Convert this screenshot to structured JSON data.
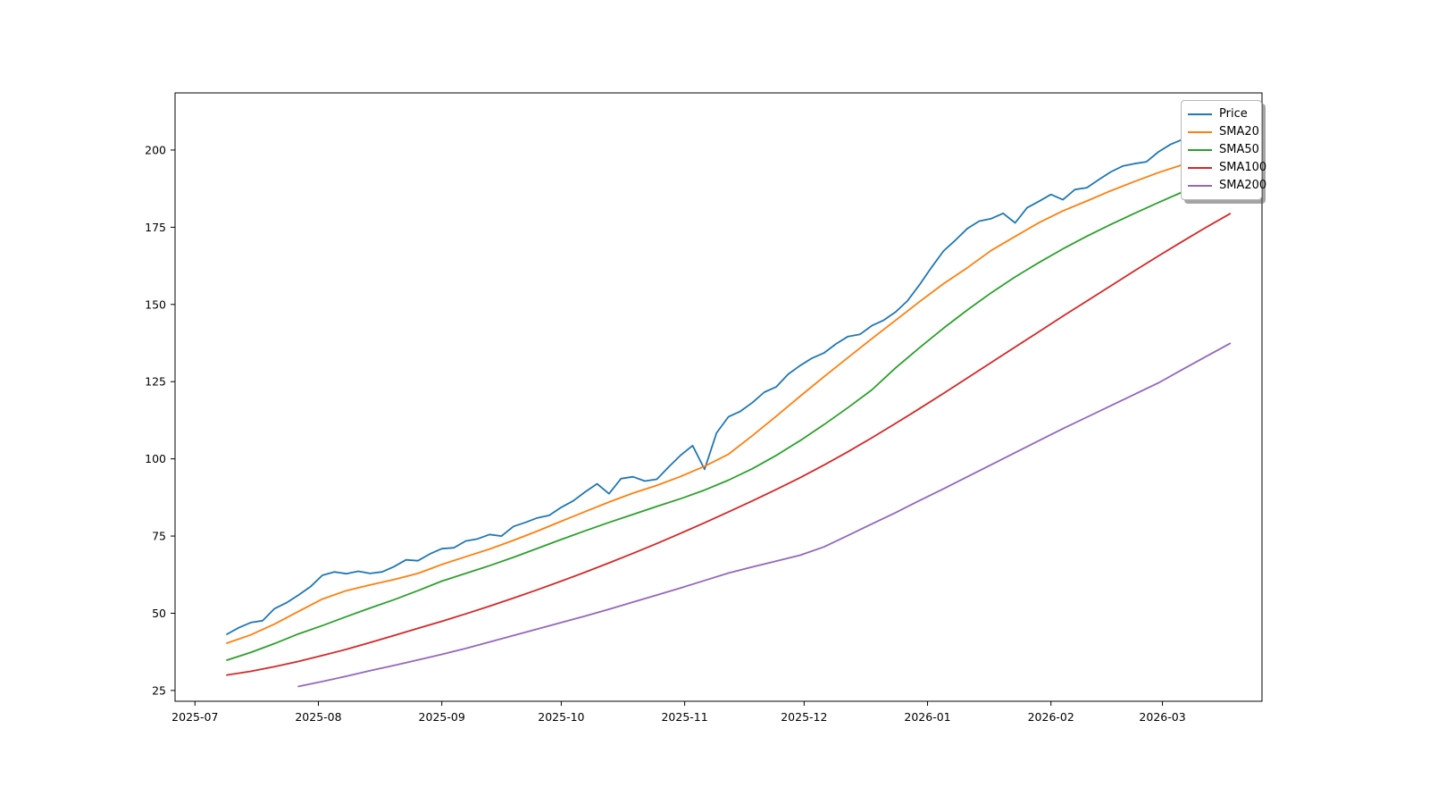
{
  "figure": {
    "background": "#ffffff",
    "plot_background": "#ffffff",
    "spine_color": "#000000"
  },
  "chart_data": {
    "type": "line",
    "title": "",
    "xlabel": "",
    "ylabel": "",
    "grid": false,
    "legend": {
      "position": "upper right",
      "frame": true,
      "shadow": true
    },
    "x_axis": {
      "epoch": "2025-07-01",
      "unit": "days since epoch",
      "domain_days": [
        -5,
        268
      ],
      "tick_days": [
        0,
        31,
        62,
        92,
        123,
        153,
        184,
        215,
        243
      ],
      "tick_labels": [
        "2025-07",
        "2025-08",
        "2025-09",
        "2025-10",
        "2025-11",
        "2025-12",
        "2026-01",
        "2026-02",
        "2026-03"
      ]
    },
    "y_axis": {
      "domain": [
        21.5,
        218.5
      ],
      "tick_values": [
        25,
        50,
        75,
        100,
        125,
        150,
        175,
        200
      ],
      "tick_labels": [
        "25",
        "50",
        "75",
        "100",
        "125",
        "150",
        "175",
        "200"
      ]
    },
    "series": [
      {
        "name": "Price",
        "color": "#1f77b4",
        "days": [
          8,
          11,
          14,
          17,
          20,
          23,
          26,
          29,
          32,
          35,
          38,
          41,
          44,
          47,
          50,
          53,
          56,
          59,
          62,
          65,
          68,
          71,
          74,
          77,
          80,
          83,
          86,
          89,
          92,
          95,
          98,
          101,
          104,
          107,
          110,
          113,
          116,
          119,
          122,
          125,
          128,
          131,
          134,
          137,
          140,
          143,
          146,
          149,
          152,
          155,
          158,
          161,
          164,
          167,
          170,
          173,
          176,
          179,
          182,
          185,
          188,
          191,
          194,
          197,
          200,
          203,
          206,
          209,
          212,
          215,
          218,
          221,
          224,
          227,
          230,
          233,
          236,
          239,
          242,
          245,
          248,
          251,
          254,
          257,
          260
        ],
        "values": [
          43.2,
          45.3,
          47.0,
          47.6,
          51.5,
          53.4,
          55.9,
          58.6,
          62.3,
          63.4,
          62.8,
          63.6,
          62.9,
          63.4,
          65.1,
          67.3,
          67.0,
          69.2,
          70.9,
          71.2,
          73.4,
          74.1,
          75.5,
          75.0,
          78.1,
          79.4,
          80.9,
          81.7,
          84.3,
          86.4,
          89.3,
          91.9,
          88.7,
          93.6,
          94.2,
          92.8,
          93.4,
          97.4,
          101.2,
          104.3,
          96.6,
          108.4,
          113.6,
          115.4,
          118.2,
          121.6,
          123.3,
          127.4,
          130.2,
          132.6,
          134.3,
          137.2,
          139.6,
          140.3,
          143.1,
          144.9,
          147.6,
          151.2,
          156.4,
          162.0,
          167.3,
          170.8,
          174.6,
          177.0,
          177.8,
          179.5,
          176.4,
          181.3,
          183.4,
          185.6,
          183.9,
          187.2,
          187.8,
          190.4,
          192.9,
          194.8,
          195.6,
          196.2,
          199.4,
          201.8,
          203.4,
          201.2,
          202.7,
          201.6,
          203.5
        ]
      },
      {
        "name": "SMA20",
        "color": "#ff7f0e",
        "days": [
          8,
          14,
          20,
          26,
          32,
          38,
          44,
          50,
          56,
          62,
          68,
          74,
          80,
          86,
          92,
          98,
          104,
          110,
          116,
          122,
          128,
          134,
          140,
          146,
          152,
          158,
          164,
          170,
          176,
          182,
          188,
          194,
          200,
          206,
          212,
          218,
          224,
          230,
          236,
          242,
          248,
          254,
          260
        ],
        "values": [
          40.3,
          43.0,
          46.5,
          50.6,
          54.6,
          57.3,
          59.2,
          60.9,
          62.9,
          65.8,
          68.3,
          70.8,
          73.6,
          76.6,
          79.8,
          82.9,
          86.0,
          88.9,
          91.4,
          94.3,
          97.6,
          101.5,
          107.5,
          113.8,
          120.3,
          126.6,
          132.8,
          138.9,
          144.9,
          150.9,
          156.7,
          161.9,
          167.5,
          172.0,
          176.5,
          180.3,
          183.5,
          186.8,
          189.8,
          192.7,
          195.2,
          197.0,
          198.6
        ]
      },
      {
        "name": "SMA50",
        "color": "#2ca02c",
        "days": [
          8,
          14,
          20,
          26,
          32,
          38,
          44,
          50,
          56,
          62,
          68,
          74,
          80,
          86,
          92,
          98,
          104,
          110,
          116,
          122,
          128,
          134,
          140,
          146,
          152,
          158,
          164,
          170,
          176,
          182,
          188,
          194,
          200,
          206,
          212,
          218,
          224,
          230,
          236,
          242,
          248,
          254,
          260
        ],
        "values": [
          34.8,
          37.3,
          40.2,
          43.3,
          46.0,
          48.9,
          51.7,
          54.4,
          57.3,
          60.4,
          62.9,
          65.4,
          68.1,
          71.0,
          73.9,
          76.7,
          79.4,
          82.0,
          84.6,
          87.1,
          89.9,
          93.1,
          96.8,
          101.1,
          105.9,
          111.1,
          116.6,
          122.3,
          129.5,
          136.0,
          142.3,
          148.2,
          153.8,
          158.9,
          163.6,
          168.0,
          172.1,
          175.9,
          179.5,
          183.0,
          186.4,
          189.6,
          192.6
        ]
      },
      {
        "name": "SMA100",
        "color": "#d62728",
        "days": [
          8,
          14,
          20,
          26,
          32,
          38,
          44,
          50,
          56,
          62,
          68,
          74,
          80,
          86,
          92,
          98,
          104,
          110,
          116,
          122,
          128,
          134,
          140,
          146,
          152,
          158,
          164,
          170,
          176,
          182,
          188,
          194,
          200,
          206,
          212,
          218,
          224,
          230,
          236,
          242,
          248,
          254,
          260
        ],
        "values": [
          30.0,
          31.2,
          32.7,
          34.4,
          36.3,
          38.3,
          40.5,
          42.8,
          45.1,
          47.4,
          49.8,
          52.3,
          54.9,
          57.6,
          60.4,
          63.3,
          66.3,
          69.4,
          72.6,
          75.9,
          79.3,
          82.8,
          86.4,
          90.1,
          93.9,
          98.0,
          102.3,
          106.8,
          111.5,
          116.3,
          121.2,
          126.2,
          131.2,
          136.2,
          141.2,
          146.2,
          151.1,
          156.0,
          160.9,
          165.7,
          170.4,
          175.0,
          179.4
        ]
      },
      {
        "name": "SMA200",
        "color": "#9467bd",
        "days": [
          26,
          32,
          38,
          44,
          50,
          56,
          62,
          68,
          74,
          80,
          86,
          92,
          98,
          104,
          110,
          116,
          122,
          128,
          134,
          140,
          146,
          152,
          158,
          164,
          170,
          176,
          182,
          188,
          194,
          200,
          206,
          212,
          218,
          224,
          230,
          236,
          242,
          248,
          254,
          260
        ],
        "values": [
          26.3,
          27.9,
          29.6,
          31.4,
          33.1,
          34.9,
          36.7,
          38.6,
          40.7,
          42.8,
          44.9,
          47.0,
          49.1,
          51.3,
          53.6,
          55.9,
          58.2,
          60.6,
          63.0,
          65.0,
          66.9,
          68.8,
          71.5,
          75.2,
          78.9,
          82.6,
          86.5,
          90.3,
          94.2,
          98.1,
          102.0,
          105.9,
          109.8,
          113.5,
          117.2,
          120.9,
          124.6,
          128.9,
          133.2,
          137.4
        ]
      }
    ]
  }
}
